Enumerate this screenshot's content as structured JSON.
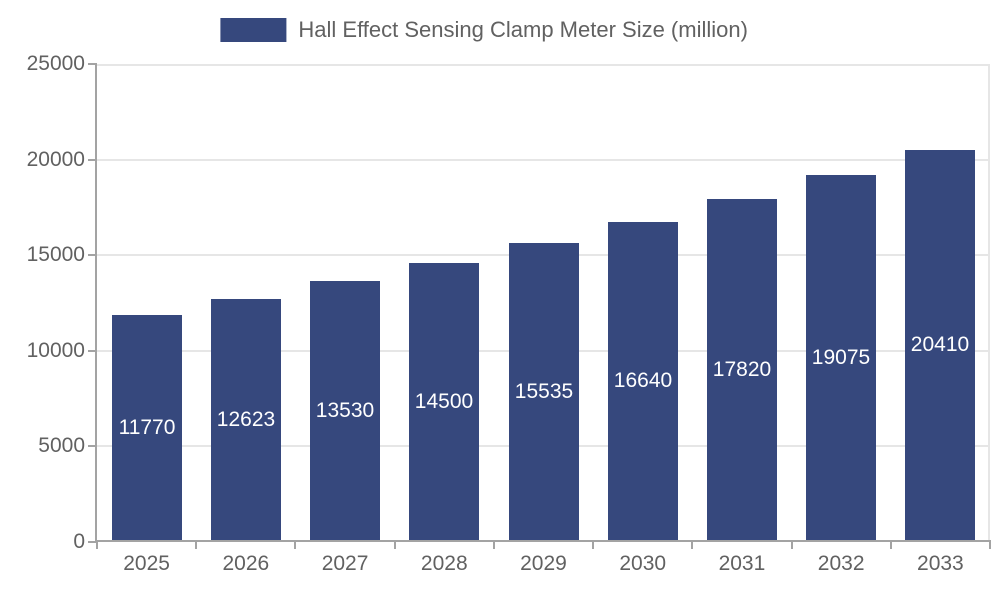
{
  "legend": {
    "label": "Hall Effect Sensing Clamp Meter Size (million)"
  },
  "chart_data": {
    "type": "bar",
    "title": "Hall Effect Sensing Clamp Meter Size (million)",
    "categories": [
      "2025",
      "2026",
      "2027",
      "2028",
      "2029",
      "2030",
      "2031",
      "2032",
      "2033"
    ],
    "values": [
      11770,
      12623,
      13530,
      14500,
      15535,
      16640,
      17820,
      19075,
      20410
    ],
    "xlabel": "",
    "ylabel": "",
    "ylim": [
      0,
      25000
    ],
    "yticks": [
      0,
      5000,
      10000,
      15000,
      20000,
      25000
    ],
    "grid": true,
    "legend_position": "top",
    "bar_labels_inside": true
  },
  "colors": {
    "bar": "#36487D",
    "bar_label": "#ffffff",
    "axis_text": "#616161",
    "gridline": "#e6e6e6",
    "axis_line": "#a3a3a3",
    "background": "#ffffff"
  }
}
